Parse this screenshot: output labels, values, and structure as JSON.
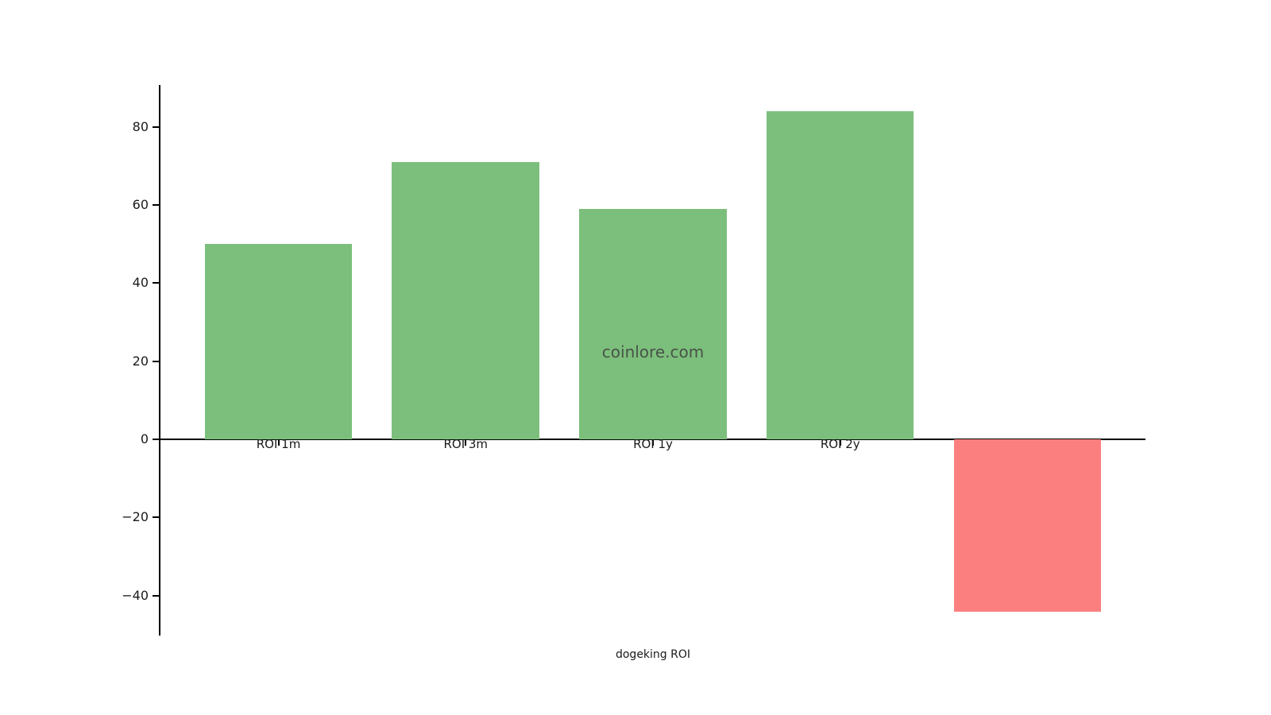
{
  "chart_data": {
    "type": "bar",
    "categories": [
      "ROI 1m",
      "ROI 3m",
      "ROI 1y",
      "ROI 2y",
      ""
    ],
    "values": [
      50,
      71,
      59,
      84,
      -44
    ],
    "series_name": "dogeking ROI",
    "xlabel": "dogeking ROI",
    "ylabel": "",
    "yticks": [
      80,
      60,
      40,
      20,
      0,
      -20,
      -40
    ],
    "ytick_labels": [
      "80",
      "60",
      "40",
      "20",
      "0",
      "−20",
      "−40"
    ],
    "ylim": [
      -50.2,
      90.7
    ],
    "grid": false,
    "legend_position": "none",
    "watermark": "coinlore.com",
    "colors": {
      "positive_bar": "#7cbf7c",
      "negative_bar": "#fc7f7f",
      "axis": "#000000",
      "tick_text": "#1a1a1a",
      "watermark_text": "#404040"
    }
  }
}
